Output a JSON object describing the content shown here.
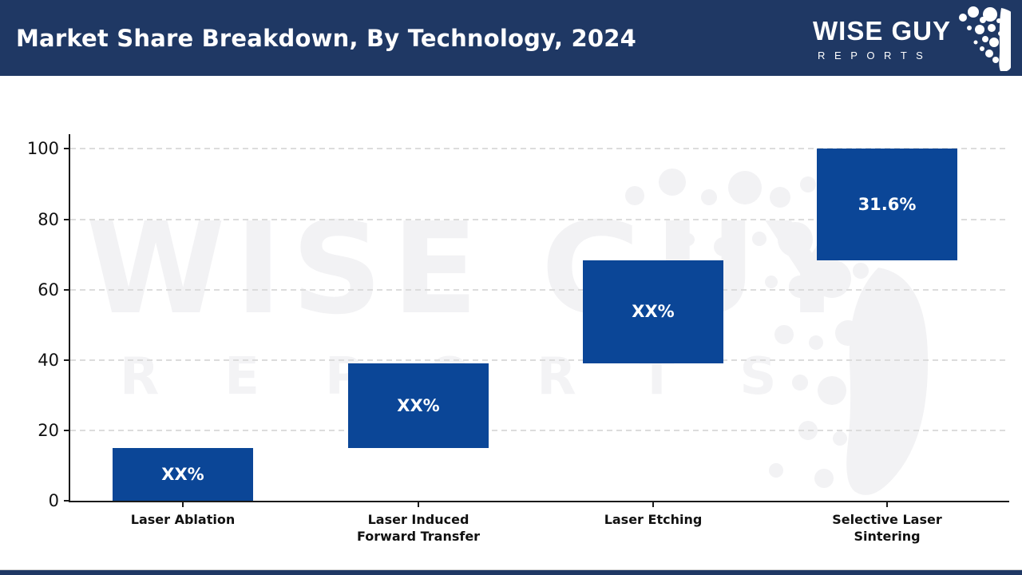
{
  "header": {
    "title": "Market Share Breakdown, By Technology, 2024",
    "logo": {
      "line1": "WISE GUY",
      "line2": "R E P O R T S"
    }
  },
  "watermark": {
    "line1": "WISE GUY",
    "line2": "REPORTS"
  },
  "colors": {
    "header_bg": "#1f3864",
    "footer_bg": "#1f3864",
    "bar": "#0b4697",
    "grid": "#dcdcdc",
    "axis": "#1a1a1a",
    "watermark": "#f2f2f4",
    "title_text": "#ffffff",
    "bar_label_text": "#ffffff"
  },
  "chart_data": {
    "type": "bar",
    "subtype": "waterfall",
    "title": "Market Share Breakdown, By Technology, 2024",
    "categories": [
      "Laser Ablation",
      "Laser Induced Forward Transfer",
      "Laser Etching",
      "Selective Laser Sintering"
    ],
    "categories_lines": [
      [
        "Laser Ablation"
      ],
      [
        "Laser Induced",
        "Forward Transfer"
      ],
      [
        "Laser Etching"
      ],
      [
        "Selective Laser",
        "Sintering"
      ]
    ],
    "bars": [
      {
        "category": "Laser Ablation",
        "start": 0,
        "end": 15,
        "label": "XX%"
      },
      {
        "category": "Laser Induced Forward Transfer",
        "start": 15,
        "end": 39,
        "label": "XX%"
      },
      {
        "category": "Laser Etching",
        "start": 39,
        "end": 68.4,
        "label": "XX%"
      },
      {
        "category": "Selective Laser Sintering",
        "start": 68.4,
        "end": 100,
        "label": "31.6%"
      }
    ],
    "ylim": [
      0,
      100
    ],
    "yticks": [
      0,
      20,
      40,
      60,
      80,
      100
    ],
    "xlabel": "",
    "ylabel": "",
    "grid": "horizontal-dashed",
    "legend": "none",
    "bar_color": "#0b4697"
  }
}
